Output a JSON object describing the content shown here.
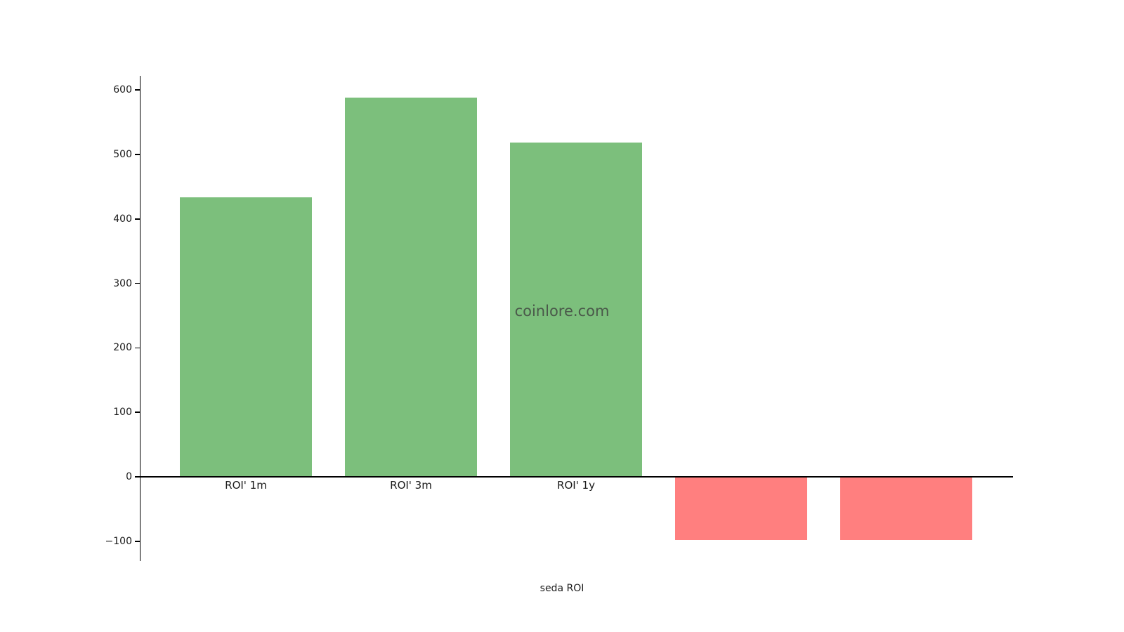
{
  "chart_data": {
    "type": "bar",
    "categories": [
      "ROI' 1m",
      "ROI' 3m",
      "ROI' 1y",
      "",
      ""
    ],
    "values": [
      434,
      588,
      519,
      -98,
      -98
    ],
    "title": "",
    "xlabel": "seda ROI",
    "ylabel": "",
    "ylim": [
      -131,
      622
    ],
    "ytick_values": [
      600,
      500,
      400,
      300,
      200,
      100,
      0,
      -100
    ],
    "ytick_labels": [
      "600",
      "500",
      "400",
      "300",
      "200",
      "100",
      "0",
      "−100"
    ],
    "grid": false,
    "legend": null,
    "positive_color": "#7cbf7c",
    "negative_color": "#ff7f7f",
    "axis_color": "#000000",
    "tick_label_color": "#1a1a1a"
  },
  "watermark": {
    "text": "coinlore.com",
    "color": "#3c3c3c"
  }
}
